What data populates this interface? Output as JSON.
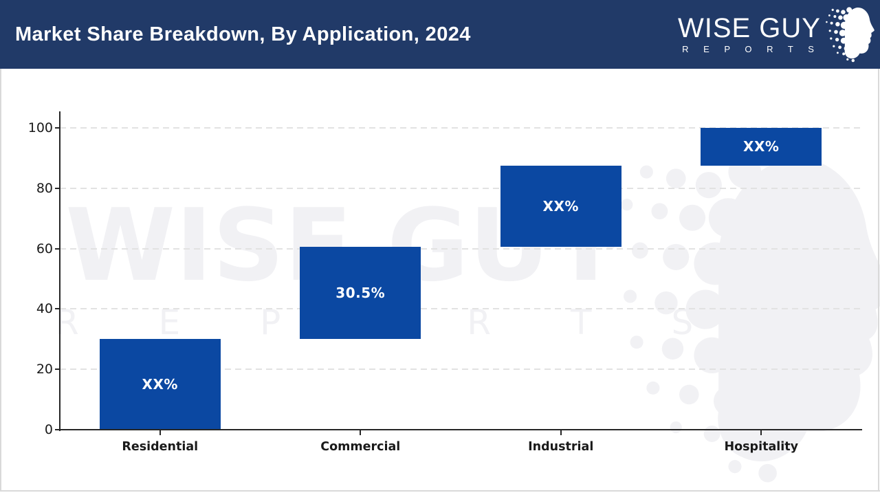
{
  "header": {
    "title": "Market Share Breakdown, By Application, 2024",
    "logo": {
      "name": "WISE GUY",
      "tagline": "R E P O R T S"
    }
  },
  "watermark": {
    "line1": "WISE GUY",
    "line2": "R E P O R T S"
  },
  "colors": {
    "header_bg": "#213a68",
    "header_text": "#ffffff",
    "bar": "#0b48a2",
    "bar_label": "#ffffff",
    "grid": "#e2e2e2",
    "axis": "#262626",
    "tick_label": "#1a1a1a",
    "watermark": "#f1f1f4",
    "page_border": "#d9d9d9"
  },
  "chart_data": {
    "type": "bar",
    "subtype": "waterfall",
    "title": "Market Share Breakdown, By Application, 2024",
    "categories": [
      "Residential",
      "Commercial",
      "Industrial",
      "Hospitality"
    ],
    "series": [
      {
        "name": "Market Share",
        "segments": [
          {
            "category": "Residential",
            "start": 0,
            "end": 30,
            "label": "XX%"
          },
          {
            "category": "Commercial",
            "start": 30,
            "end": 60.5,
            "label": "30.5%"
          },
          {
            "category": "Industrial",
            "start": 60.5,
            "end": 87.5,
            "label": "XX%"
          },
          {
            "category": "Hospitality",
            "start": 87.5,
            "end": 100,
            "label": "XX%"
          }
        ]
      }
    ],
    "yticks": [
      0,
      20,
      40,
      60,
      80,
      100
    ],
    "ylim": [
      0,
      100
    ],
    "xlabel": "",
    "ylabel": "",
    "grid": "horizontal-dashed",
    "legend": "none"
  }
}
